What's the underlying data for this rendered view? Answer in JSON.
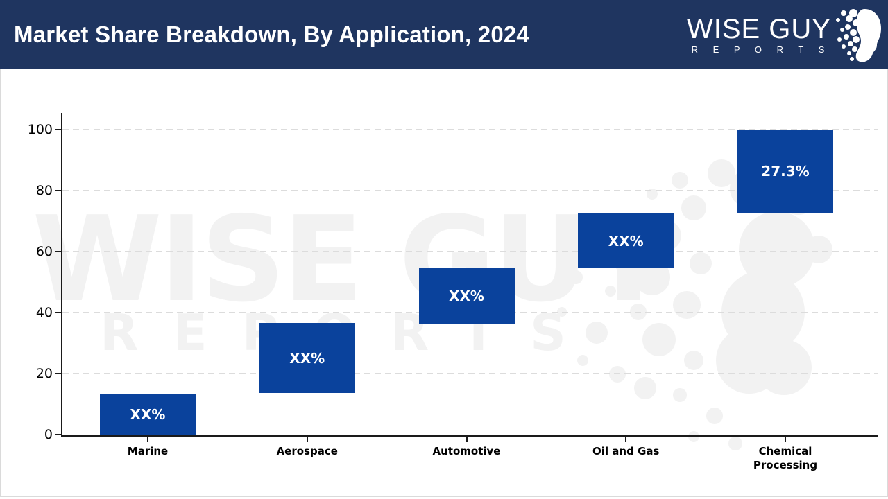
{
  "header": {
    "title": "Market Share Breakdown, By Application, 2024",
    "logo": {
      "wordmark": "WISE GUY",
      "subtext": "R E P O R T S"
    }
  },
  "watermark": {
    "wordmark": "WISE GUY",
    "subtext": "R E P O R T S"
  },
  "colors": {
    "header_bg": "#1f3560",
    "bar": "#0a429c",
    "bar_label": "#ffffff",
    "axis": "#1a1a1a",
    "grid": "#dcdcdc",
    "watermark": "#f2f2f2"
  },
  "chart_data": {
    "type": "bar",
    "subtype": "floating-waterfall",
    "title": "Market Share Breakdown, By Application, 2024",
    "categories": [
      "Marine",
      "Aerospace",
      "Automotive",
      "Oil and Gas",
      "Chemical Processing"
    ],
    "bars": [
      {
        "category": "Marine",
        "start": 0,
        "end": 13.4,
        "label": "XX%"
      },
      {
        "category": "Aerospace",
        "start": 13.6,
        "end": 36.6,
        "label": "XX%"
      },
      {
        "category": "Automotive",
        "start": 36.4,
        "end": 54.5,
        "label": "XX%"
      },
      {
        "category": "Oil and Gas",
        "start": 54.5,
        "end": 72.5,
        "label": "XX%"
      },
      {
        "category": "Chemical Processing",
        "start": 72.7,
        "end": 100,
        "label": "27.3%"
      }
    ],
    "xlabel": "",
    "ylabel": "",
    "yticks": [
      0,
      20,
      40,
      60,
      80,
      100
    ],
    "ylim": [
      0,
      105.5
    ],
    "grid": "horizontal dashed",
    "legend": "none",
    "bar_color": "#0a429c"
  }
}
